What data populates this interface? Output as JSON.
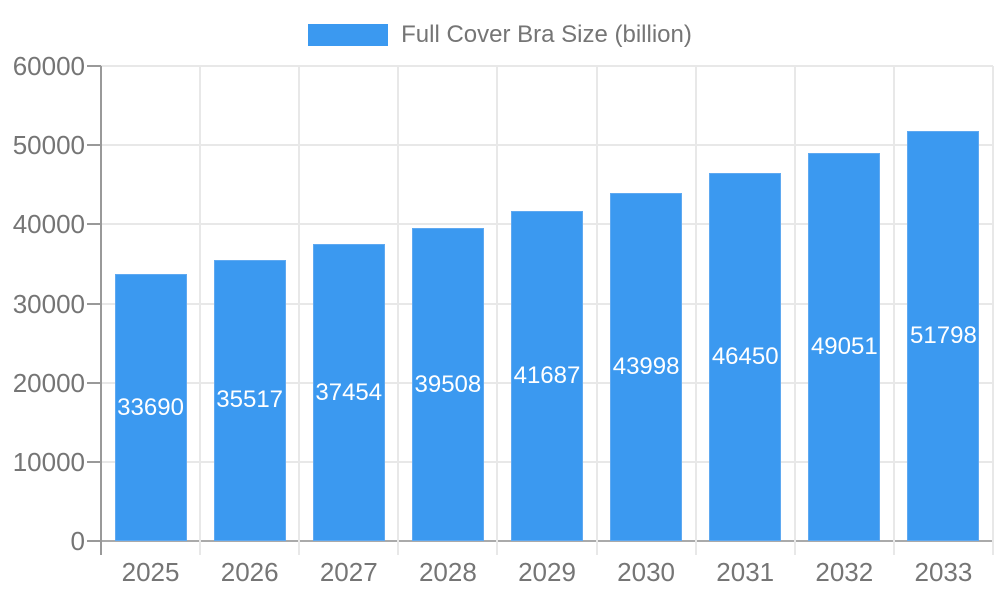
{
  "legend": {
    "label": "Full Cover Bra Size (billion)"
  },
  "colors": {
    "bar": "#3B99F0",
    "bar_border": "#5FA9F1",
    "bar_label": "#FFFFFF",
    "axis_text": "#757575",
    "axis_line": "#999999",
    "baseline": "#AAAAAA",
    "gridline": "#E8E8E8"
  },
  "chart_data": {
    "type": "bar",
    "title": "Full Cover Bra Size (billion)",
    "categories": [
      "2025",
      "2026",
      "2027",
      "2028",
      "2029",
      "2030",
      "2031",
      "2032",
      "2033"
    ],
    "values": [
      33690,
      35517,
      37454,
      39508,
      41687,
      43998,
      46450,
      49051,
      51798
    ],
    "xlabel": "",
    "ylabel": "",
    "ylim": [
      0,
      60000
    ],
    "yticks": [
      0,
      10000,
      20000,
      30000,
      40000,
      50000,
      60000
    ],
    "grid": true,
    "legend_position": "top",
    "legend_entries": [
      "Full Cover Bra Size (billion)"
    ],
    "value_labels": "inside-center"
  }
}
